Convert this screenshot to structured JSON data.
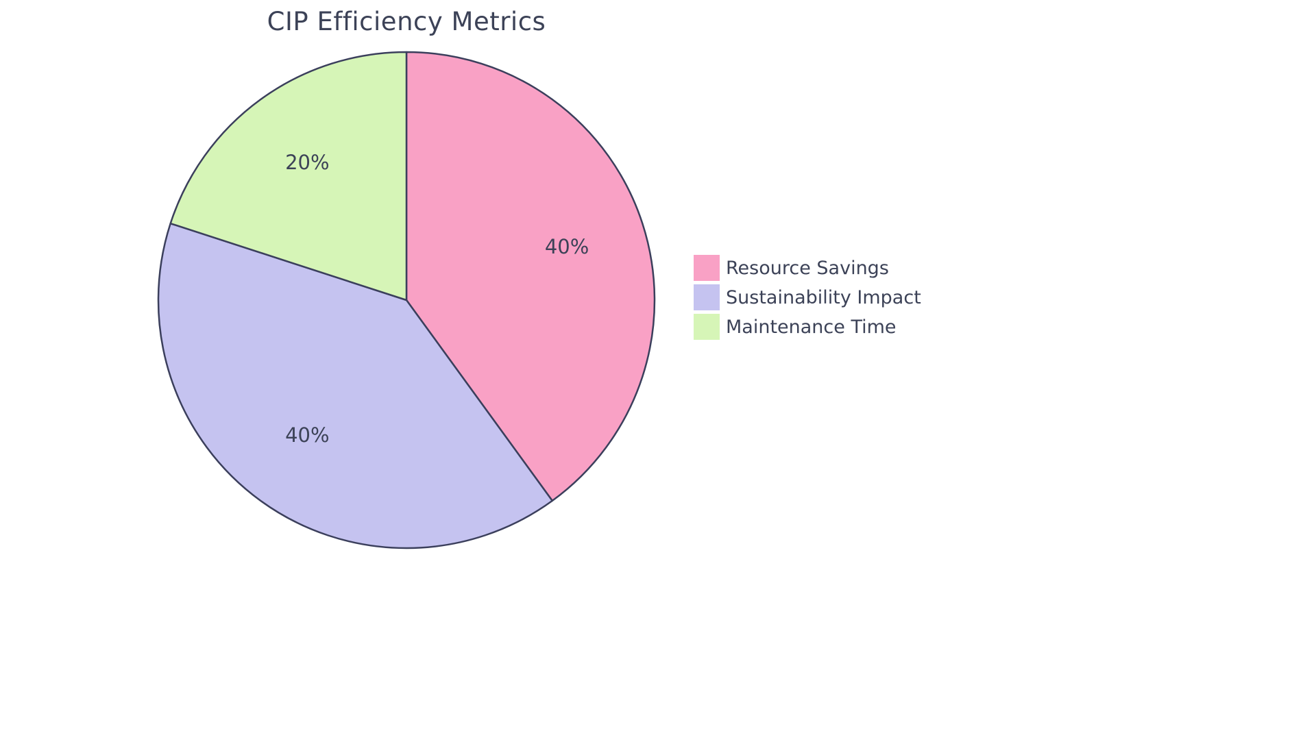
{
  "page": {
    "background_color": "#FFFFFF"
  },
  "chart_data": {
    "type": "pie",
    "title": "CIP Efficiency Metrics",
    "categories": [
      "Resource Savings",
      "Sustainability Impact",
      "Maintenance Time"
    ],
    "values": [
      40,
      40,
      20
    ],
    "slice_labels": [
      "40%",
      "40%",
      "20%"
    ],
    "colors": [
      "#F9A1C5",
      "#C5C3F0",
      "#D6F5B7"
    ],
    "stroke_color": "#3B3F5C",
    "text_color": "#3C4257",
    "legend_position": "right",
    "start_angle_deg": -90,
    "direction": "clockwise",
    "legend_entries": [
      "Resource Savings",
      "Sustainability Impact",
      "Maintenance Time"
    ]
  }
}
